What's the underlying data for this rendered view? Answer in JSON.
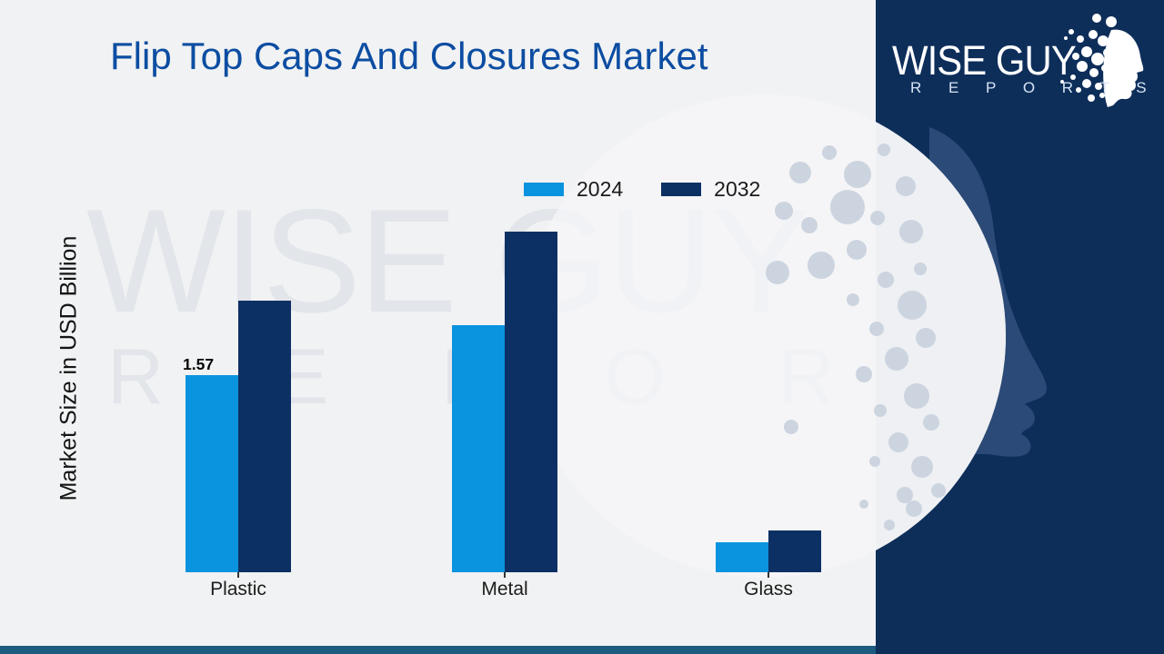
{
  "page": {
    "title": "Flip Top Caps And Closures Market"
  },
  "logo": {
    "line1": "WISE GUY",
    "line2": "R E P O R T S"
  },
  "watermark": {
    "line1": "WISE GUY",
    "line2": "R E P O R T S"
  },
  "colors": {
    "title_blue": "#0c4da2",
    "series_2024": "#0a93de",
    "series_2032": "#0d3064",
    "right_panel_navy": "#0e2e5a",
    "footer_teal": "#1d5c80",
    "watermark_gray": "#e2e5ea"
  },
  "chart_data": {
    "type": "bar",
    "title": "Flip Top Caps And Closures Market",
    "xlabel": "",
    "ylabel": "Market Size in USD Billion",
    "categories": [
      "Plastic",
      "Metal",
      "Glass"
    ],
    "series": [
      {
        "name": "2024",
        "color": "#0a93de",
        "values": [
          1.57,
          1.97,
          0.24
        ]
      },
      {
        "name": "2032",
        "color": "#0d3064",
        "values": [
          2.16,
          2.71,
          0.33
        ]
      }
    ],
    "data_labels": [
      {
        "series": "2024",
        "category": "Plastic",
        "text": "1.57"
      }
    ],
    "legend_position": "top",
    "grid": false,
    "ylim": [
      0,
      3
    ]
  }
}
